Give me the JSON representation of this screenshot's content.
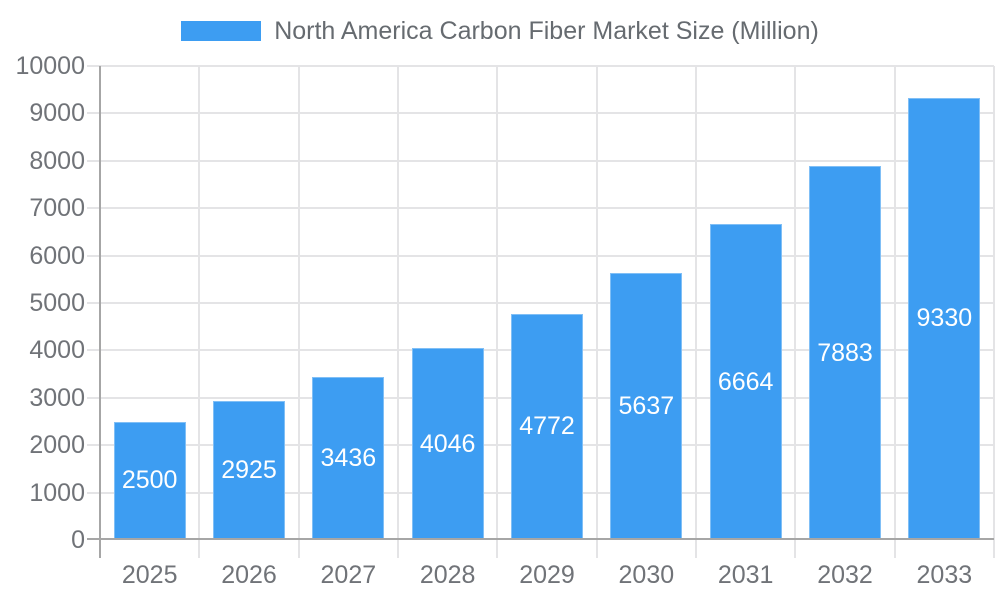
{
  "legend": {
    "label": "North America Carbon Fiber Market Size (Million)"
  },
  "chart_data": {
    "type": "bar",
    "title": "North America Carbon Fiber Market Size (Million)",
    "categories": [
      "2025",
      "2026",
      "2027",
      "2028",
      "2029",
      "2030",
      "2031",
      "2032",
      "2033"
    ],
    "values": [
      2500,
      2925,
      3436,
      4046,
      4772,
      5637,
      6664,
      7883,
      9330
    ],
    "xlabel": "",
    "ylabel": "",
    "ylim": [
      0,
      10000
    ],
    "ytick_step": 1000,
    "yticks": [
      0,
      1000,
      2000,
      3000,
      4000,
      5000,
      6000,
      7000,
      8000,
      9000,
      10000
    ],
    "grid": true,
    "legend_position": "top-center",
    "bar_label_position": "inside-center",
    "colors": {
      "bar": "#3D9DF2",
      "bar_label": "#FFFFFF",
      "axis_text": "#707378",
      "legend_text": "#666B70",
      "gridline": "#E4E4E6",
      "axis_line": "#A6A6A6",
      "background": "#FFFFFF"
    }
  }
}
